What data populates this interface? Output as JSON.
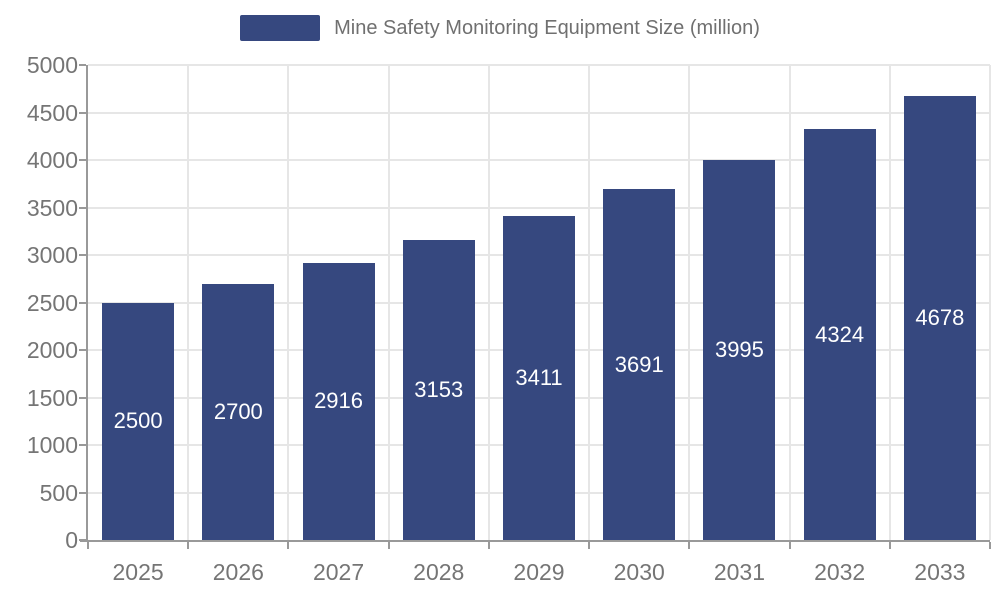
{
  "chart_data": {
    "type": "bar",
    "title": "Mine Safety Monitoring Equipment Size (million)",
    "legend_position": "top",
    "legend_entries": [
      "Mine Safety Monitoring Equipment Size (million)"
    ],
    "categories": [
      "2025",
      "2026",
      "2027",
      "2028",
      "2029",
      "2030",
      "2031",
      "2032",
      "2033"
    ],
    "series": [
      {
        "name": "Mine Safety Monitoring Equipment Size (million)",
        "values": [
          2500,
          2700,
          2916,
          3153,
          3411,
          3691,
          3995,
          4324,
          4678
        ]
      }
    ],
    "xlabel": "",
    "ylabel": "",
    "ylim": [
      0,
      5000
    ],
    "ytick_step": 500,
    "ytick_labels": [
      "0",
      "500",
      "1000",
      "1500",
      "2000",
      "2500",
      "3000",
      "3500",
      "4000",
      "4500",
      "5000"
    ],
    "grid": true,
    "bar_labels_inside": true,
    "colors": {
      "bar": "#36487F",
      "bar_label": "#FFFFFF",
      "axis_line": "#999999",
      "grid_line": "#E6E6E6",
      "axis_text": "#757575",
      "legend_text": "#707070",
      "background": "#FFFFFF"
    }
  }
}
